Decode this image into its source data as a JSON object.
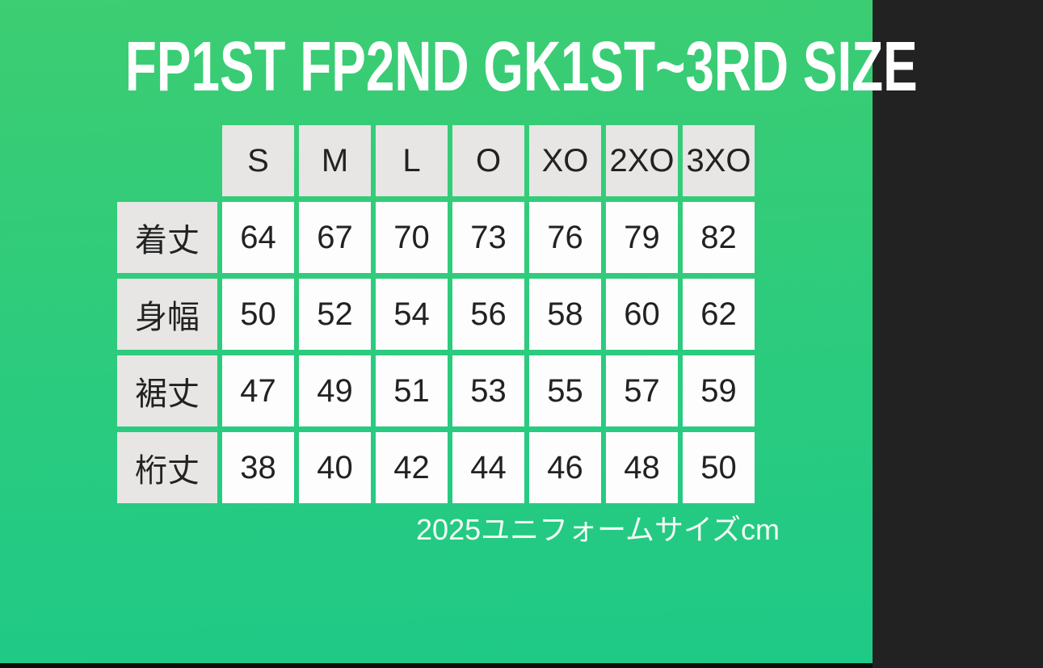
{
  "title": "FP1ST FP2ND GK1ST~3RD SIZE",
  "caption": "2025ユニフォームサイズcm",
  "colors": {
    "bg_top": "#3dcd72",
    "bg_bottom": "#1eca87",
    "header_cell_bg": "#e7e6e4",
    "value_cell_bg": "#fdfdfd",
    "cell_text": "#222222",
    "title_text": "#ffffff",
    "caption_text": "#f2fbf5",
    "bottom_bar": "#0d0d0d"
  },
  "chart_data": {
    "type": "table",
    "title": "FP1ST FP2ND GK1ST~3RD SIZE",
    "caption": "2025ユニフォームサイズcm",
    "unit": "cm",
    "columns": [
      "S",
      "M",
      "L",
      "O",
      "XO",
      "2XO",
      "3XO"
    ],
    "rows": [
      {
        "label": "着丈",
        "values": [
          64,
          67,
          70,
          73,
          76,
          79,
          82
        ]
      },
      {
        "label": "身幅",
        "values": [
          50,
          52,
          54,
          56,
          58,
          60,
          62
        ]
      },
      {
        "label": "裾丈",
        "values": [
          47,
          49,
          51,
          53,
          55,
          57,
          59
        ]
      },
      {
        "label": "桁丈",
        "values": [
          38,
          40,
          42,
          44,
          46,
          48,
          50
        ]
      }
    ]
  }
}
